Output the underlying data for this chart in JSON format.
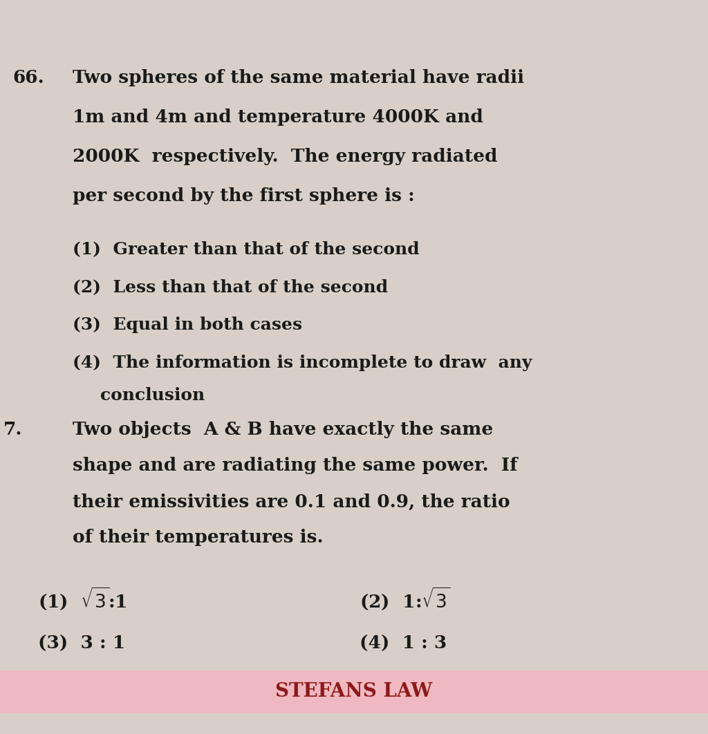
{
  "title": "STEFANS LAW",
  "title_color": "#8B1A1A",
  "title_bg_color": "#F0B8C0",
  "bg_color": "#D8D0C8",
  "text_color": "#1a1a1a",
  "q66_number": "66.",
  "q66_lines": [
    "Two spheres of the same material have radii",
    "1m and 4m and temperature 4000K and",
    "2000K  respectively.  The energy radiated",
    "per second by the first sphere is :"
  ],
  "q66_options": [
    "(1)  Greater than that of the second",
    "(2)  Less than that of the second",
    "(3)  Equal in both cases",
    "(4)  The information is incomplete to draw  any"
  ],
  "q66_opt4_cont": "       conclusion",
  "q67_number": "7.",
  "q67_lines": [
    "Two objects  A & B have exactly the same",
    "shape and are radiating the same power.  If",
    "their emissivities are 0.1 and 0.9, the ratio",
    "of their temperatures is."
  ],
  "q67_col1": [
    "(1)  $\\sqrt{3}$:1",
    "(3)  3 : 1"
  ],
  "q67_col2": [
    "(2)  1:$\\sqrt{3}$",
    "(4)  1 : 3"
  ],
  "title_fontsize": 20,
  "main_fontsize": 19,
  "opt_fontsize": 18,
  "q67opt_fontsize": 19
}
